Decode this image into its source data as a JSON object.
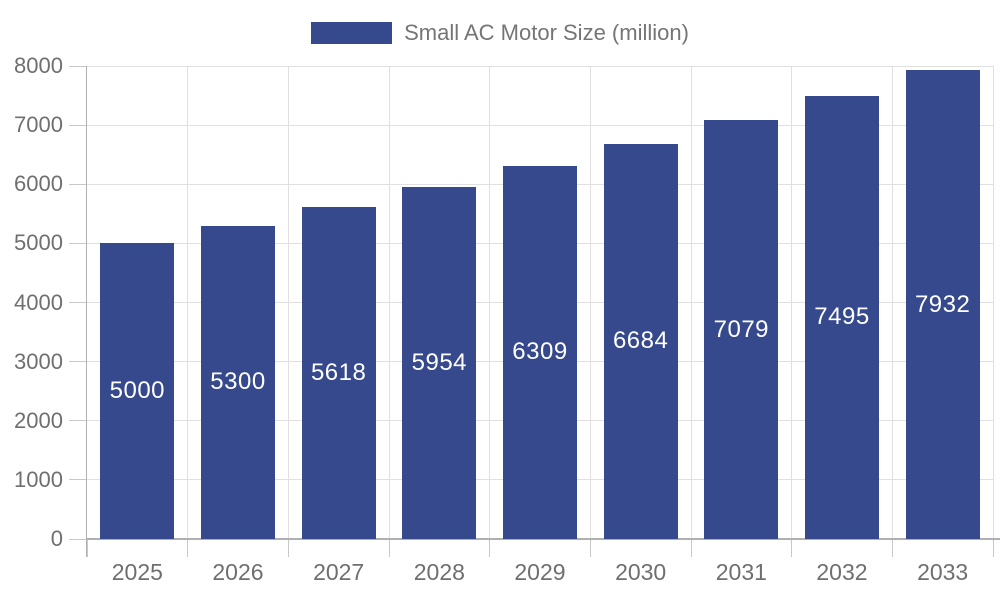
{
  "chart_data": {
    "type": "bar",
    "title": "Small AC Motor Size (million)",
    "legend": {
      "label": "Small AC Motor Size (million)",
      "position": "top-center"
    },
    "categories": [
      "2025",
      "2026",
      "2027",
      "2028",
      "2029",
      "2030",
      "2031",
      "2032",
      "2033"
    ],
    "series": [
      {
        "name": "Small AC Motor Size (million)",
        "values": [
          5000,
          5300,
          5618,
          5954,
          6309,
          6684,
          7079,
          7495,
          7932
        ]
      }
    ],
    "xlabel": "",
    "ylabel": "",
    "ylim": [
      0,
      8000
    ],
    "yticks": [
      0,
      1000,
      2000,
      3000,
      4000,
      5000,
      6000,
      7000,
      8000
    ],
    "grid": true,
    "value_labels": "inside-center-white",
    "colors": {
      "bar": "#36498c",
      "value_label": "#ffffff",
      "grid": "#e0e0e0",
      "axis_line": "#b0b0b0",
      "tick": "#c8c8c8",
      "axis_text": "#6f6f6f",
      "legend_text": "#757575",
      "background": "#ffffff"
    }
  }
}
